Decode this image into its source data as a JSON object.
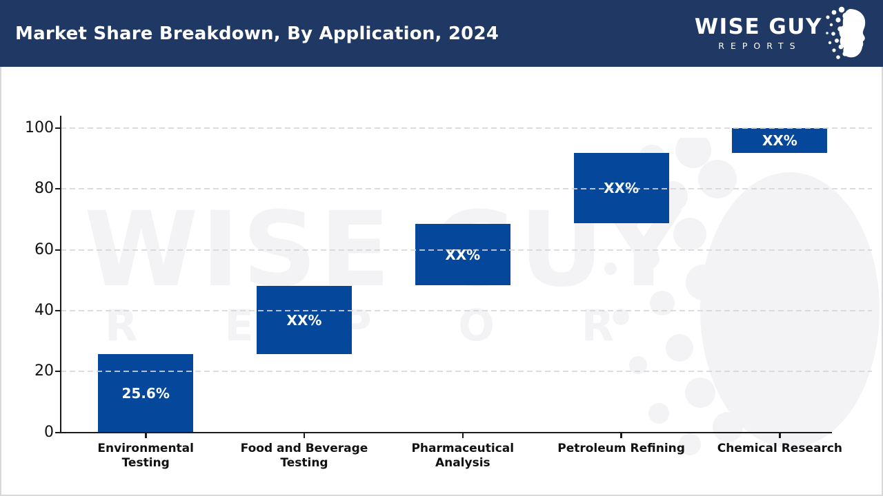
{
  "header": {
    "title": "Market Share Breakdown, By Application, 2024",
    "logo_line1": "WISE GUY",
    "logo_line2": "REPORTS"
  },
  "watermark": {
    "line1": "WISE GUY",
    "line2": "R E P O R T S"
  },
  "chart_data": {
    "type": "bar",
    "subtype": "floating-segment (waterfall-style) market share bars",
    "title": "Market Share Breakdown, By Application, 2024",
    "xlabel": "",
    "ylabel": "",
    "ylim": [
      0,
      100
    ],
    "yticks": [
      0,
      20,
      40,
      60,
      80,
      100
    ],
    "grid": "dashed horizontal gridlines, drawn over bars",
    "legend": "none",
    "bar_color": "#05479b",
    "label_color": "#ffffff",
    "categories": [
      "Environmental Testing",
      "Food and Beverage Testing",
      "Pharmaceutical Analysis",
      "Petroleum Refining",
      "Chemical Research"
    ],
    "segments": [
      {
        "category": "Environmental Testing",
        "lines": [
          "Environmental",
          "Testing"
        ],
        "start": 0,
        "end": 25.6,
        "label": "25.6%"
      },
      {
        "category": "Food and Beverage Testing",
        "lines": [
          "Food and Beverage",
          "Testing"
        ],
        "start": 25.6,
        "end": 48.1,
        "label": "XX%"
      },
      {
        "category": "Pharmaceutical Analysis",
        "lines": [
          "Pharmaceutical",
          "Analysis"
        ],
        "start": 48.3,
        "end": 68.5,
        "label": "XX%"
      },
      {
        "category": "Petroleum Refining",
        "lines": [
          "Petroleum Refining"
        ],
        "start": 68.7,
        "end": 91.9,
        "label": "XX%"
      },
      {
        "category": "Chemical Research",
        "lines": [
          "Chemical Research"
        ],
        "start": 91.9,
        "end": 100,
        "label": "XX%"
      }
    ]
  }
}
